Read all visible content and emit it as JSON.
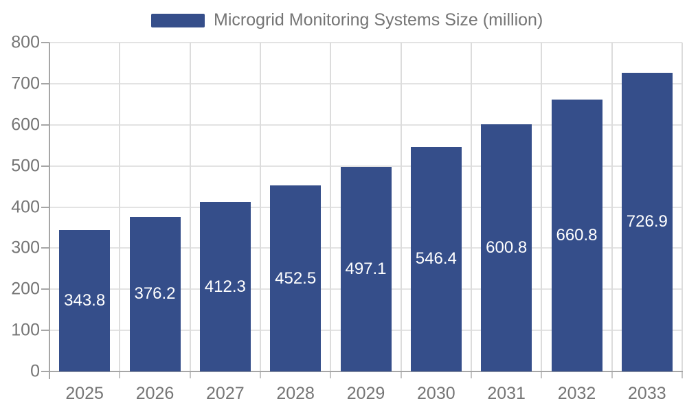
{
  "legend": {
    "label": "Microgrid Monitoring Systems Size (million)"
  },
  "chart_data": {
    "type": "bar",
    "title": "",
    "series_name": "Microgrid Monitoring Systems Size (million)",
    "categories": [
      "2025",
      "2026",
      "2027",
      "2028",
      "2029",
      "2030",
      "2031",
      "2032",
      "2033"
    ],
    "values": [
      343.8,
      376.2,
      412.3,
      452.5,
      497.1,
      546.4,
      600.8,
      660.8,
      726.9
    ],
    "xlabel": "",
    "ylabel": "",
    "ylim": [
      0,
      800
    ],
    "ytick_step": 100,
    "yticks": [
      0,
      100,
      200,
      300,
      400,
      500,
      600,
      700,
      800
    ],
    "grid": true,
    "legend_position": "top-center",
    "value_label_position": "inside-center",
    "colors": {
      "bar": "#354e8a",
      "bar_label": "#ffffff",
      "axis_text": "#757575",
      "grid_h": "#e3e3e3",
      "grid_v": "#dcdcdc",
      "axis_line": "#a6a6a6",
      "tick": "#c4c4c4",
      "background": "#ffffff"
    }
  }
}
